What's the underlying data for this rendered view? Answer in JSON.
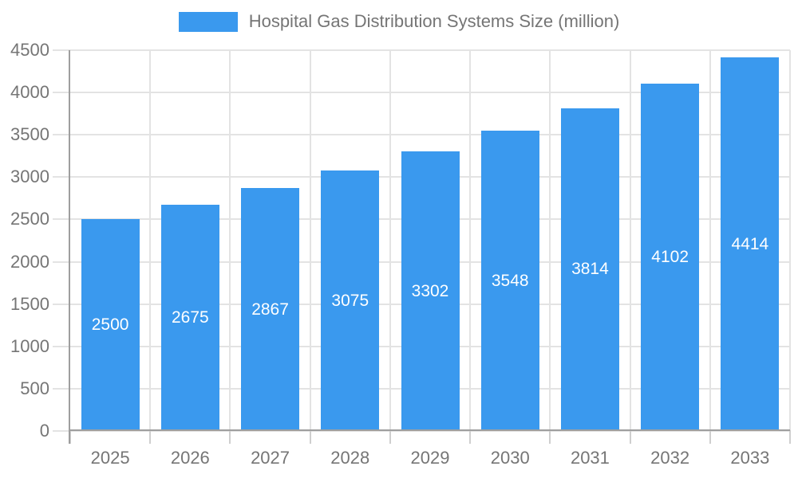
{
  "chart_data": {
    "type": "bar",
    "title": "Hospital Gas Distribution Systems Size (million)",
    "categories": [
      "2025",
      "2026",
      "2027",
      "2028",
      "2029",
      "2030",
      "2031",
      "2032",
      "2033"
    ],
    "values": [
      2500,
      2675,
      2867,
      3075,
      3302,
      3548,
      3814,
      4102,
      4414
    ],
    "xlabel": "",
    "ylabel": "",
    "ylim": [
      0,
      4500
    ],
    "yticks": [
      0,
      500,
      1000,
      1500,
      2000,
      2500,
      3000,
      3500,
      4000,
      4500
    ],
    "grid": true,
    "legend_position": "top",
    "value_labels_position": "center-inside",
    "colors": {
      "bar": "#3A99EE",
      "axis_label": "#757575",
      "value_label": "#FFFFFF",
      "gridline": "#E3E3E3",
      "axis_line": "#9E9E9E",
      "boundary_tick": "#CFCFCF",
      "background": "#FFFFFF"
    }
  }
}
